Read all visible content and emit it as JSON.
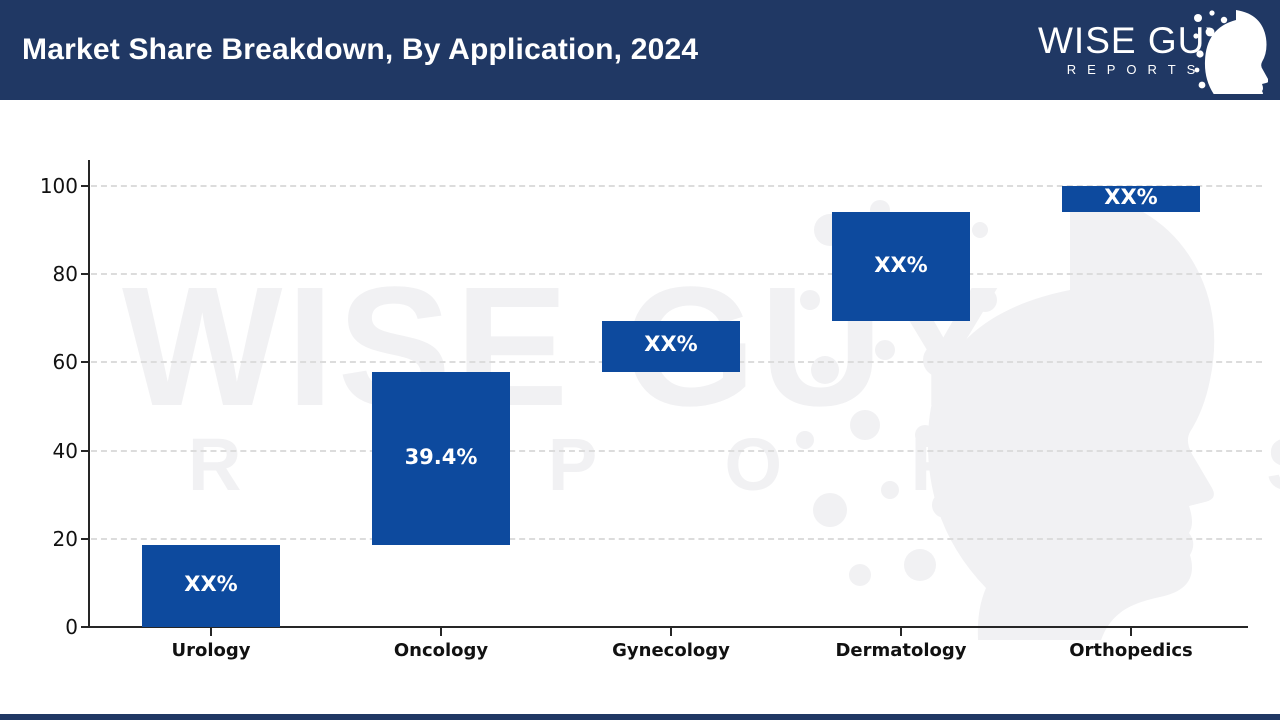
{
  "header": {
    "title": "Market Share Breakdown, By Application, 2024",
    "bg_color": "#203864",
    "logo": {
      "line1": "WISE GUY",
      "line2": "REPORTS"
    }
  },
  "watermark": {
    "line1": "WISE GUY",
    "line2": "REPORTS"
  },
  "footer": {
    "bg_color": "#203864"
  },
  "chart_data": {
    "type": "bar",
    "subtype": "waterfall",
    "title": "Market Share Breakdown, By Application, 2024",
    "categories": [
      "Urology",
      "Oncology",
      "Gynecology",
      "Dermatology",
      "Orthopedics"
    ],
    "segments": [
      {
        "category": "Urology",
        "start": 0,
        "end": 18.5,
        "label": "XX%"
      },
      {
        "category": "Oncology",
        "start": 18.5,
        "end": 57.9,
        "label": "39.4%"
      },
      {
        "category": "Gynecology",
        "start": 57.9,
        "end": 69.4,
        "label": "XX%"
      },
      {
        "category": "Dermatology",
        "start": 69.4,
        "end": 94.0,
        "label": "XX%"
      },
      {
        "category": "Orthopedics",
        "start": 94.0,
        "end": 100,
        "label": "XX%"
      }
    ],
    "xlabel": "",
    "ylabel": "",
    "yticks": [
      0,
      20,
      40,
      60,
      80,
      100
    ],
    "ylim": [
      0,
      106
    ],
    "bar_color": "#0d4a9e",
    "bar_label_color": "#ffffff",
    "grid": "horizontal-dashed",
    "legend": "none"
  }
}
